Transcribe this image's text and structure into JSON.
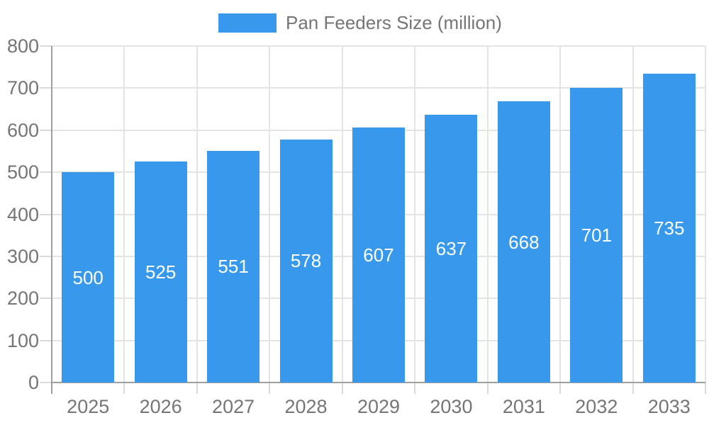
{
  "chart_data": {
    "type": "bar",
    "legend": "Pan Feeders Size (million)",
    "legend_position": "top",
    "categories": [
      "2025",
      "2026",
      "2027",
      "2028",
      "2029",
      "2030",
      "2031",
      "2032",
      "2033"
    ],
    "values": [
      500,
      525,
      551,
      578,
      607,
      637,
      668,
      701,
      735
    ],
    "y_tick_labels": [
      "0",
      "100",
      "200",
      "300",
      "400",
      "500",
      "600",
      "700",
      "800"
    ],
    "ylim": [
      0,
      800
    ],
    "ytick_step": 100,
    "grid": true,
    "xlabel": "",
    "ylabel": "",
    "title": "",
    "colors": {
      "bar": "#3899EC",
      "text": "#757575",
      "value_label": "#FFFFFF",
      "gridline": "#E4E4E4",
      "tick": "#D9D9D9",
      "axis": "#9E9E9E",
      "background": "#FFFFFF"
    }
  }
}
